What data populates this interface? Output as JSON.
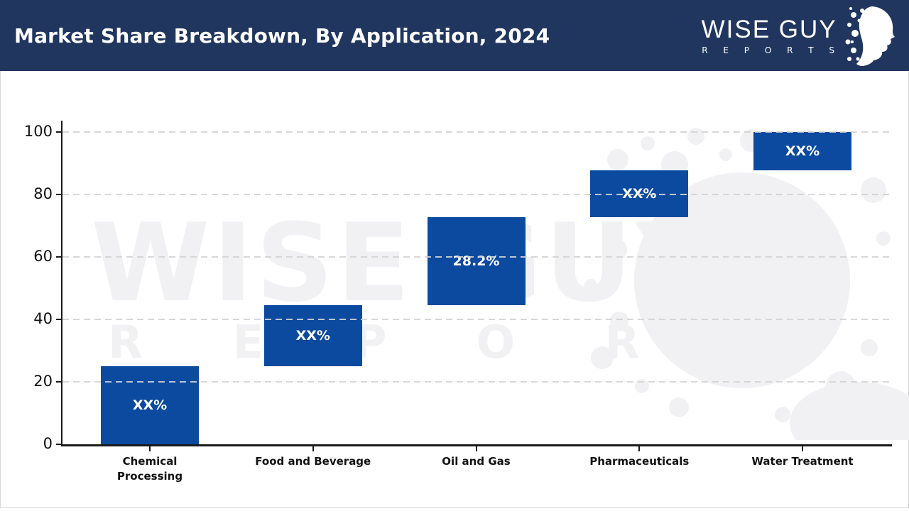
{
  "header": {
    "title": "Market Share Breakdown, By Application, 2024",
    "bg_color": "#21365F",
    "logo": {
      "name": "WISE GUY",
      "subtitle": "R E P O R T S"
    }
  },
  "watermark": {
    "line1": "WISE GUY",
    "line2": "R E P O R T S"
  },
  "chart_data": {
    "type": "bar",
    "subtype": "waterfall",
    "title": "Market Share Breakdown, By Application, 2024",
    "xlabel": "",
    "ylabel": "",
    "categories": [
      "Chemical Processing",
      "Food and Beverage",
      "Oil and Gas",
      "Pharmaceuticals",
      "Water Treatment"
    ],
    "tick_labels": [
      "Chemical\nProcessing",
      "Food and Beverage",
      "Oil and Gas",
      "Pharmaceuticals",
      "Water Treatment"
    ],
    "segments": [
      {
        "category": "Chemical Processing",
        "start": 0,
        "end": 25,
        "label": "XX%"
      },
      {
        "category": "Food and Beverage",
        "start": 25,
        "end": 44.5,
        "label": "XX%"
      },
      {
        "category": "Oil and Gas",
        "start": 44.5,
        "end": 72.7,
        "label": "28.2%"
      },
      {
        "category": "Pharmaceuticals",
        "start": 72.7,
        "end": 87.7,
        "label": "XX%"
      },
      {
        "category": "Water Treatment",
        "start": 87.7,
        "end": 100,
        "label": "XX%"
      }
    ],
    "y_ticks": [
      0,
      20,
      40,
      60,
      80,
      100
    ],
    "ylim": [
      0,
      105
    ],
    "grid": {
      "axis": "y",
      "style": "dashed",
      "color": "#D3D3D3"
    },
    "legend": "none",
    "bar_color": "#0B4A9F",
    "bar_label_color": "#FFFFFF",
    "axis_color": "#1A1A1A"
  }
}
